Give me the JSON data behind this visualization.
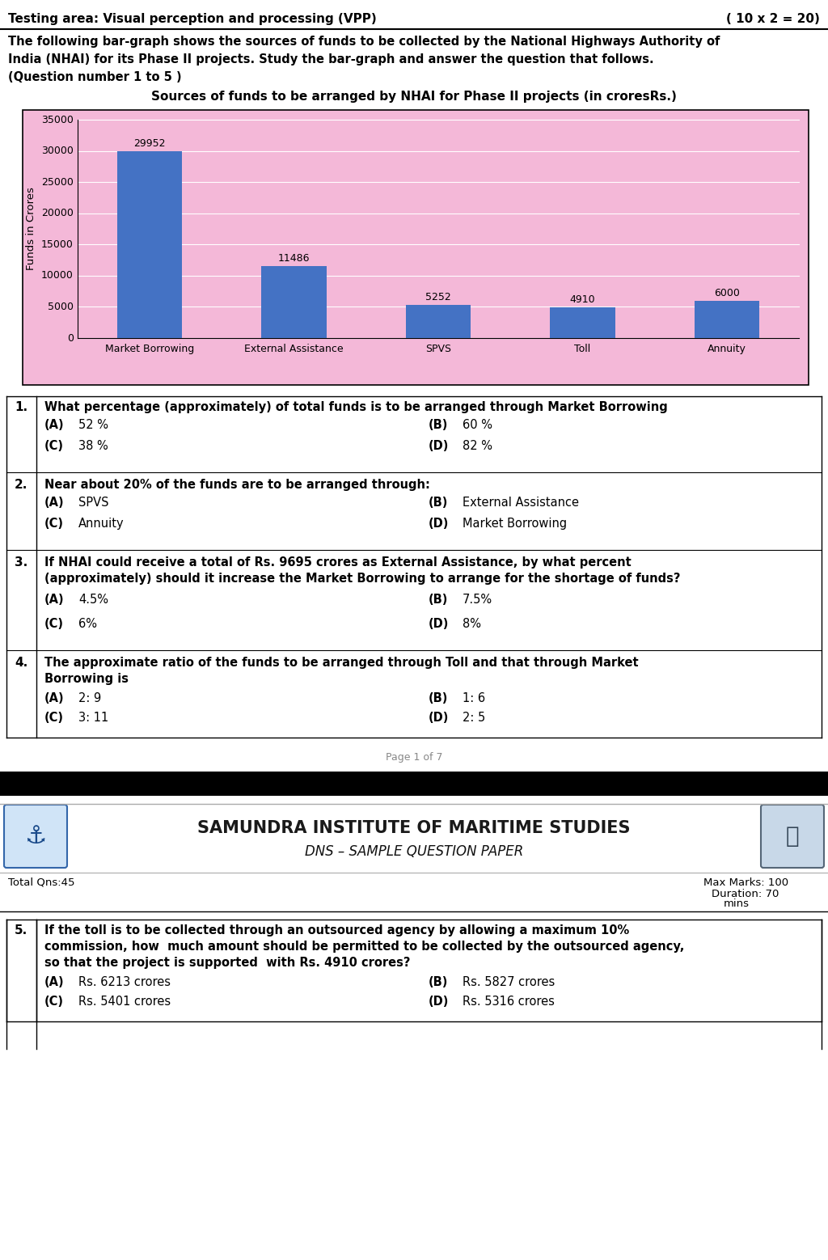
{
  "header_left": "Testing area: Visual perception and processing (VPP)",
  "header_right": "( 10 x 2 = 20)",
  "intro_text": "The following bar-graph shows the sources of funds to be collected by the National Highways Authority of\nIndia (NHAI) for its Phase II projects. Study the bar-graph and answer the question that follows.\n(Question number 1 to 5 )",
  "chart_title": "Sources of funds to be arranged by NHAI for Phase II projects (in croresRs.)",
  "bar_categories": [
    "Market Borrowing",
    "External Assistance",
    "SPVS",
    "Toll",
    "Annuity"
  ],
  "bar_values": [
    29952,
    11486,
    5252,
    4910,
    6000
  ],
  "bar_color": "#4472C4",
  "chart_bg_color": "#F4B8D8",
  "ylabel": "Funds in Crores",
  "ylim": [
    0,
    35000
  ],
  "yticks": [
    0,
    5000,
    10000,
    15000,
    20000,
    25000,
    30000,
    35000
  ],
  "questions": [
    {
      "num": "1.",
      "bold_text": "What percentage (approximately) of total funds is to be arranged through Market Borrowing",
      "options": [
        {
          "label": "(A)",
          "text": "52 %"
        },
        {
          "label": "(B)",
          "text": "60 %"
        },
        {
          "label": "(C)",
          "text": "38 %"
        },
        {
          "label": "(D)",
          "text": "82 %"
        }
      ]
    },
    {
      "num": "2.",
      "bold_text": "Near about 20% of the funds are to be arranged through:",
      "options": [
        {
          "label": "(A)",
          "text": "SPVS"
        },
        {
          "label": "(B)",
          "text": "External Assistance"
        },
        {
          "label": "(C)",
          "text": "Annuity"
        },
        {
          "label": "(D)",
          "text": "Market Borrowing"
        }
      ]
    },
    {
      "num": "3.",
      "bold_text": "If NHAI could receive a total of Rs. 9695 crores as External Assistance, by what percent\n(approximately) should it increase the Market Borrowing to arrange for the shortage of funds?",
      "options": [
        {
          "label": "(A)",
          "text": "4.5%"
        },
        {
          "label": "(B)",
          "text": "7.5%"
        },
        {
          "label": "(C)",
          "text": "6%"
        },
        {
          "label": "(D)",
          "text": "8%"
        }
      ]
    },
    {
      "num": "4.",
      "bold_text": "The approximate ratio of the funds to be arranged through Toll and that through Market\nBorrowing is",
      "options": [
        {
          "label": "(A)",
          "text": "2: 9"
        },
        {
          "label": "(B)",
          "text": "1: 6"
        },
        {
          "label": "(C)",
          "text": "3: 11"
        },
        {
          "label": "(D)",
          "text": "2: 5"
        }
      ]
    }
  ],
  "page_text": "Page 1 of 7",
  "black_bar_color": "#000000",
  "institute_name": "SAMUNDRA INSTITUTE OF MARITIME STUDIES",
  "sub_title": "DNS – SAMPLE QUESTION PAPER",
  "total_qns": "Total Qns:45",
  "max_marks": "Max Marks: 100",
  "duration_line1": "Duration: 70",
  "duration_line2": "mins",
  "question5_num": "5.",
  "question5_bold": "If the toll is to be collected through an outsourced agency by allowing a maximum 10%\ncommission, how  much amount should be permitted to be collected by the outsourced agency,\nso that the project is supported  with Rs. 4910 crores?",
  "question5_options": [
    {
      "label": "(A)",
      "text": "Rs. 6213 crores"
    },
    {
      "label": "(B)",
      "text": "Rs. 5827 crores"
    },
    {
      "label": "(C)",
      "text": "Rs. 5401 crores"
    },
    {
      "label": "(D)",
      "text": "Rs. 5316 crores"
    }
  ]
}
